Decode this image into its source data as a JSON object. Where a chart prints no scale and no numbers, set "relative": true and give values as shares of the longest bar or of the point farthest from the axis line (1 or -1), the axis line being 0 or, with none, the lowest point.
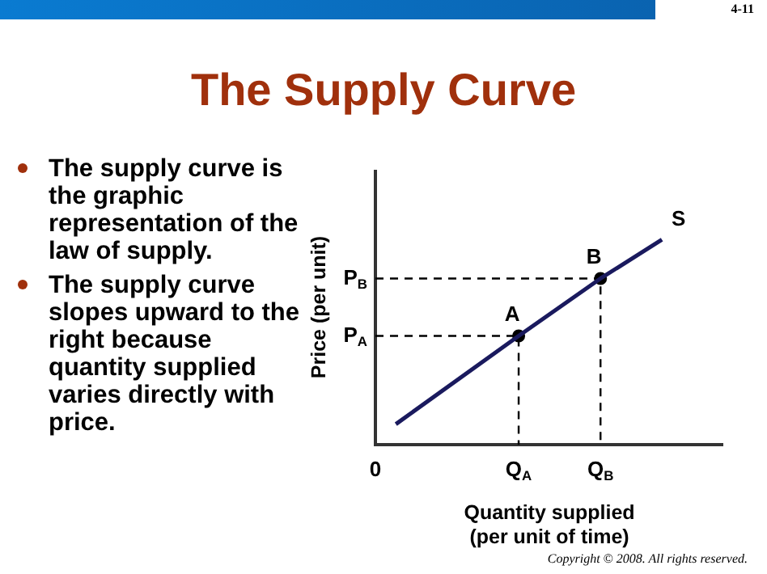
{
  "chart_data": {
    "type": "line",
    "title": "The Supply Curve",
    "xlabel": "Quantity supplied\n(per unit of time)",
    "ylabel": "Price (per unit)",
    "relative": true,
    "grid": false,
    "legend": false,
    "categories": [
      "0",
      null,
      null,
      null,
      null,
      null,
      null,
      "Q$_{A}$",
      null,
      null,
      null,
      "Q$_{B}$",
      null,
      null,
      null,
      null,
      null,
      null
    ],
    "series": [
      {
        "name": "S",
        "color": "#1a1a5e",
        "values": [
          null,
          0.1,
          null,
          null,
          null,
          null,
          null,
          0.53,
          null,
          null,
          null,
          0.81,
          null,
          null,
          1.0,
          null,
          null,
          null
        ],
        "marker": "none",
        "line_style": "solid"
      },
      {
        "type": "scatter",
        "color": "#000000",
        "x": [
          "Q$_{A}$",
          "Q$_{B}$"
        ],
        "values": [
          0.53,
          0.81
        ],
        "marker": "circle"
      }
    ],
    "annotations": [
      "4-11",
      "The supply curve is the graphic representation of the law of supply.",
      "The supply curve slopes upward to the right because quantity supplied varies directly with price.",
      "Copyright © 2008. All rights reserved.",
      {
        "text": "A",
        "x": "Q$_{A}$",
        "y": 0.53
      },
      {
        "text": "B",
        "x": "Q$_{B}$",
        "y": 0.81
      },
      "P$_{A}$",
      "P$_{B}$"
    ]
  }
}
